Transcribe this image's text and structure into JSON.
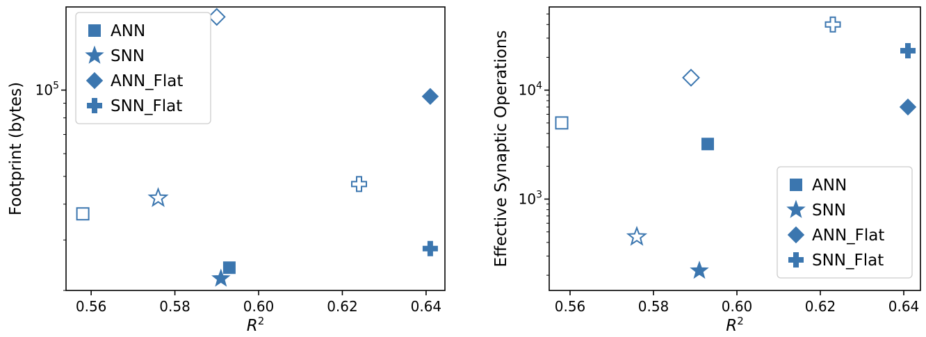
{
  "figure": {
    "background": "#ffffff",
    "marker_color": "#3b76af",
    "axis_color": "#000000",
    "legend_border_color": "#cccccc",
    "legend_background": "#ffffff"
  },
  "chart_data": [
    {
      "type": "scatter",
      "panel": "left",
      "title": "",
      "xlabel_base": "R",
      "xlabel_sup": "2",
      "ylabel": "Footprint (bytes)",
      "x_scale": "linear",
      "y_scale": "log",
      "grid": false,
      "xlim": [
        0.554,
        0.6445
      ],
      "ylim": [
        20000,
        195000
      ],
      "x_ticks": [
        0.56,
        0.58,
        0.6,
        0.62,
        0.64
      ],
      "x_tick_labels": [
        "0.56",
        "0.58",
        "0.60",
        "0.62",
        "0.64"
      ],
      "y_ticks": [
        {
          "value": 100000,
          "base": "10",
          "sup": "5"
        }
      ],
      "legend_position": "upper-left",
      "series": [
        {
          "name": "ANN",
          "marker": "square",
          "points": [
            {
              "x": 0.593,
              "y": 24000,
              "filled": true
            },
            {
              "x": 0.558,
              "y": 37000,
              "filled": false
            }
          ]
        },
        {
          "name": "SNN",
          "marker": "star",
          "points": [
            {
              "x": 0.591,
              "y": 22000,
              "filled": true
            },
            {
              "x": 0.576,
              "y": 42000,
              "filled": false
            }
          ]
        },
        {
          "name": "ANN_Flat",
          "marker": "diamond",
          "points": [
            {
              "x": 0.641,
              "y": 95000,
              "filled": true
            },
            {
              "x": 0.59,
              "y": 180000,
              "filled": false
            }
          ]
        },
        {
          "name": "SNN_Flat",
          "marker": "plus",
          "points": [
            {
              "x": 0.641,
              "y": 28000,
              "filled": true
            },
            {
              "x": 0.624,
              "y": 47000,
              "filled": false
            }
          ]
        }
      ]
    },
    {
      "type": "scatter",
      "panel": "right",
      "title": "",
      "xlabel_base": "R",
      "xlabel_sup": "2",
      "ylabel": "Effective Synaptic Operations",
      "x_scale": "linear",
      "y_scale": "log",
      "grid": false,
      "xlim": [
        0.555,
        0.644
      ],
      "ylim": [
        145,
        58000
      ],
      "x_ticks": [
        0.56,
        0.58,
        0.6,
        0.62,
        0.64
      ],
      "x_tick_labels": [
        "0.56",
        "0.58",
        "0.60",
        "0.62",
        "0.64"
      ],
      "y_ticks": [
        {
          "value": 1000,
          "base": "10",
          "sup": "3"
        },
        {
          "value": 10000,
          "base": "10",
          "sup": "4"
        }
      ],
      "legend_position": "lower-right",
      "series": [
        {
          "name": "ANN",
          "marker": "square",
          "points": [
            {
              "x": 0.593,
              "y": 3200,
              "filled": true
            },
            {
              "x": 0.558,
              "y": 5000,
              "filled": false
            }
          ]
        },
        {
          "name": "SNN",
          "marker": "star",
          "points": [
            {
              "x": 0.591,
              "y": 220,
              "filled": true
            },
            {
              "x": 0.576,
              "y": 450,
              "filled": false
            }
          ]
        },
        {
          "name": "ANN_Flat",
          "marker": "diamond",
          "points": [
            {
              "x": 0.641,
              "y": 7000,
              "filled": true
            },
            {
              "x": 0.589,
              "y": 13000,
              "filled": false
            }
          ]
        },
        {
          "name": "SNN_Flat",
          "marker": "plus",
          "points": [
            {
              "x": 0.641,
              "y": 23000,
              "filled": true
            },
            {
              "x": 0.623,
              "y": 40000,
              "filled": false
            }
          ]
        }
      ]
    }
  ]
}
